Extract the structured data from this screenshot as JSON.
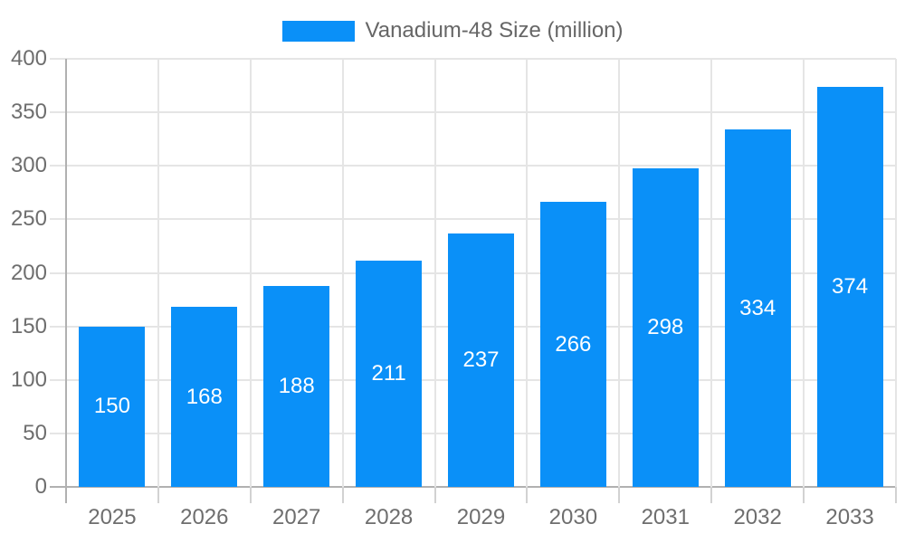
{
  "legend": {
    "position": "top",
    "items": [
      {
        "label": "Vanadium-48 Size (million)",
        "color": "#0a90f8"
      }
    ]
  },
  "colors": {
    "bar": "#0a90f8",
    "grid": "#e5e5e5",
    "axis": "#b1b1b1",
    "x_tick_mark": "#d2d2d2",
    "tick_text": "#6e6e6e",
    "legend_text": "#666666",
    "value_text": "#ffffff",
    "background": "#ffffff"
  },
  "chart_data": {
    "type": "bar",
    "title": "Vanadium-48 Size (million)",
    "categories": [
      "2025",
      "2026",
      "2027",
      "2028",
      "2029",
      "2030",
      "2031",
      "2032",
      "2033"
    ],
    "series": [
      {
        "name": "Vanadium-48 Size (million)",
        "color": "#0a90f8",
        "values": [
          150,
          168,
          188,
          211,
          237,
          266,
          298,
          334,
          374
        ]
      }
    ],
    "xlabel": "",
    "ylabel": "",
    "ylim": [
      0,
      400
    ],
    "ytick_step": 50,
    "ytick_labels": [
      "0",
      "50",
      "100",
      "150",
      "200",
      "250",
      "300",
      "350",
      "400"
    ],
    "grid": true,
    "legend_position": "top",
    "value_labels": "inside-center"
  }
}
